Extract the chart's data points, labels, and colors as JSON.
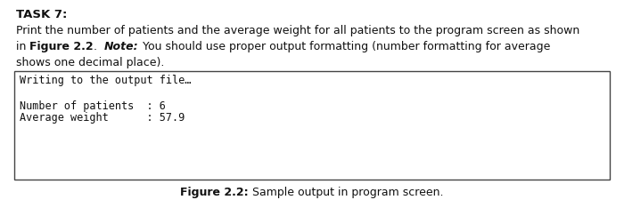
{
  "title": "TASK 7:",
  "line1": "Print the number of patients and the average weight for all patients to the program screen as shown",
  "line2_pre": "in ",
  "line2_bold": "Figure 2.2",
  "line2_mid": ".  ",
  "line2_note": "Note:",
  "line2_post": " You should use proper output formatting (number formatting for average",
  "line3": "shows one decimal place).",
  "code_line1": "Writing to the output file…",
  "code_line2": "",
  "code_line3": "Number of patients  : 6",
  "code_line4": "Average weight      : 57.9",
  "caption_bold": "Figure 2.2:",
  "caption_normal": " Sample output in program screen.",
  "bg_color": "#ffffff",
  "box_border": "#444444",
  "text_color": "#111111",
  "fs_title": 9.5,
  "fs_body": 9.0,
  "fs_code": 8.5,
  "fs_caption": 9.0
}
